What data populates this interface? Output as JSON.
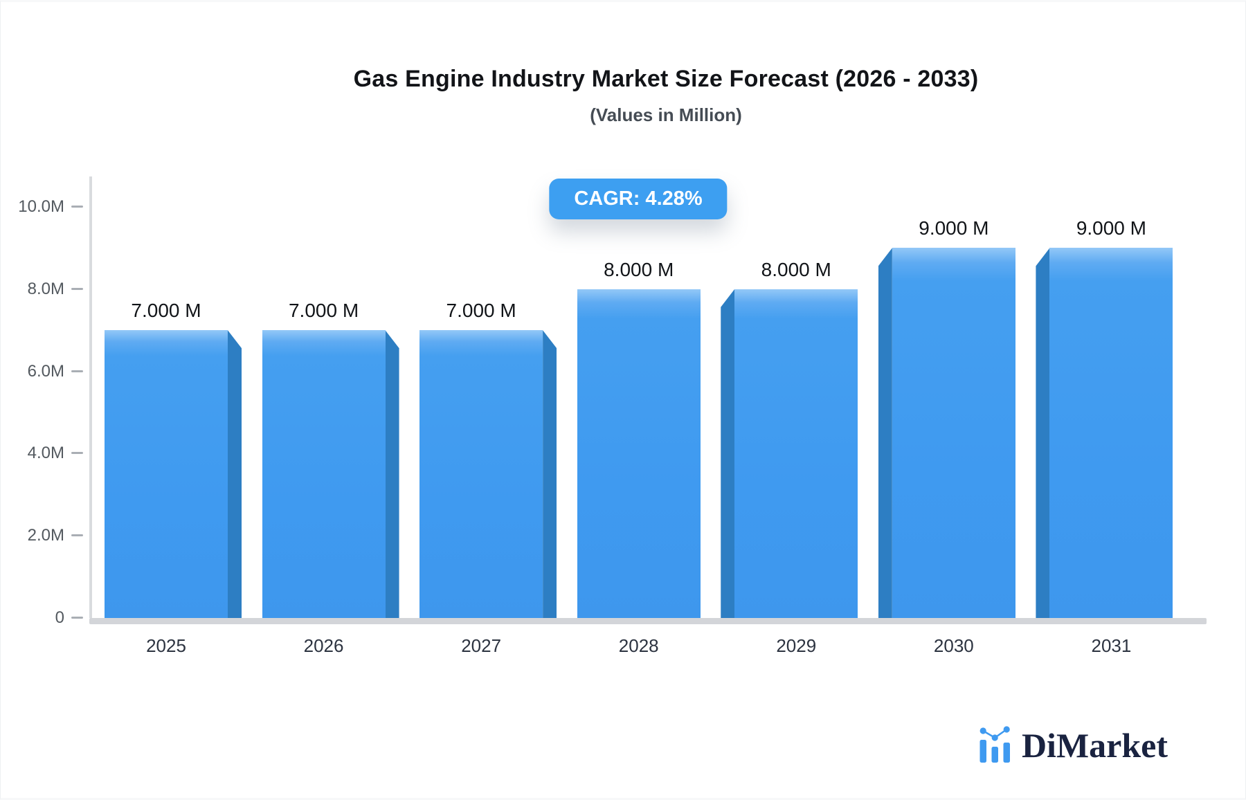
{
  "header": {
    "title": "Gas Engine Industry Market Size Forecast (2026 - 2033)",
    "subtitle": "(Values in Million)",
    "cagr_badge": "CAGR: 4.28%",
    "cagr_value": "4.28%",
    "badge_color": "#3d9ff1"
  },
  "chart_data": {
    "type": "bar",
    "title": "Gas Engine Industry Market Size Forecast (2026 - 2033)",
    "subtitle": "(Values in Million)",
    "unit": "Million",
    "categories": [
      "2025",
      "2026",
      "2027",
      "2028",
      "2029",
      "2030",
      "2031"
    ],
    "values_millions": [
      7,
      7,
      7,
      8,
      8,
      9,
      9
    ],
    "value_labels": [
      "7.000 M",
      "7.000 M",
      "7.000 M",
      "8.000 M",
      "8.000 M",
      "9.000 M",
      "9.000 M"
    ],
    "yticks": [
      {
        "value": 0,
        "label": "0"
      },
      {
        "value": 2,
        "label": "2.0M"
      },
      {
        "value": 4,
        "label": "4.0M"
      },
      {
        "value": 6,
        "label": "6.0M"
      },
      {
        "value": 8,
        "label": "8.0M"
      },
      {
        "value": 10,
        "label": "10.0M"
      }
    ],
    "ylim_millions": [
      0,
      10
    ],
    "grid": false,
    "legend": false,
    "extrude_side": [
      "right",
      "right",
      "right",
      "none",
      "left",
      "left",
      "left"
    ],
    "bar_face_color": "#3f9af0",
    "bar_top_highlight": "#93c8f7",
    "bar_side_color": "#2d7ec3",
    "axis_color": "#d9dbde",
    "tick_label_color": "#53595f",
    "category_label_color": "#2c3340",
    "value_label_color": "#111418"
  },
  "branding": {
    "name": "DiMarket",
    "logo_icon": "dimarket-bars-line-icon",
    "logo_color": "#3f9af0",
    "text_color": "#1a2340"
  }
}
